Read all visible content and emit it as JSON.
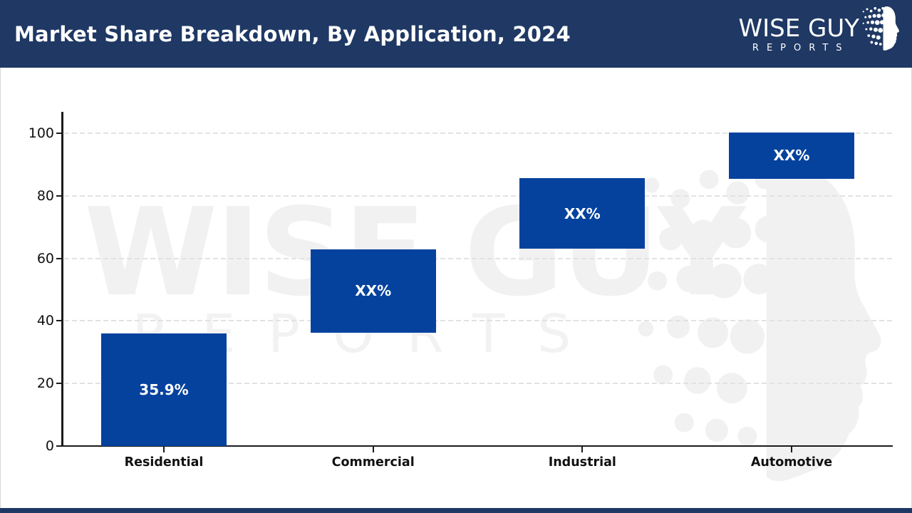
{
  "header": {
    "title": "Market Share Breakdown, By Application, 2024",
    "bg_color": "#1F3864",
    "logo": {
      "line1": "WISE GUY",
      "line2": "REPORTS",
      "face_icon": "face-profile-dots-icon"
    }
  },
  "watermark": {
    "line1": "WISE GUY",
    "line2": "REPORTS",
    "color": "#f1f1f1"
  },
  "chart_data": {
    "type": "bar",
    "variant": "waterfall",
    "title": "Market Share Breakdown, By Application, 2024",
    "categories": [
      "Residential",
      "Commercial",
      "Industrial",
      "Automotive"
    ],
    "bars": [
      {
        "category": "Residential",
        "label": "35.9%",
        "start": 0,
        "end": 35.9
      },
      {
        "category": "Commercial",
        "label": "XX%",
        "start": 36.2,
        "end": 62.9
      },
      {
        "category": "Industrial",
        "label": "XX%",
        "start": 63.0,
        "end": 85.6
      },
      {
        "category": "Automotive",
        "label": "XX%",
        "start": 85.5,
        "end": 100.2
      }
    ],
    "yticks": [
      0,
      20,
      40,
      60,
      80,
      100
    ],
    "ylim": [
      0,
      107
    ],
    "grid": "horizontal-dashed",
    "legend": null,
    "bar_color": "#05429E",
    "bar_label_color": "#FFFFFF"
  },
  "footer": {
    "bg_color": "#1F3864"
  }
}
